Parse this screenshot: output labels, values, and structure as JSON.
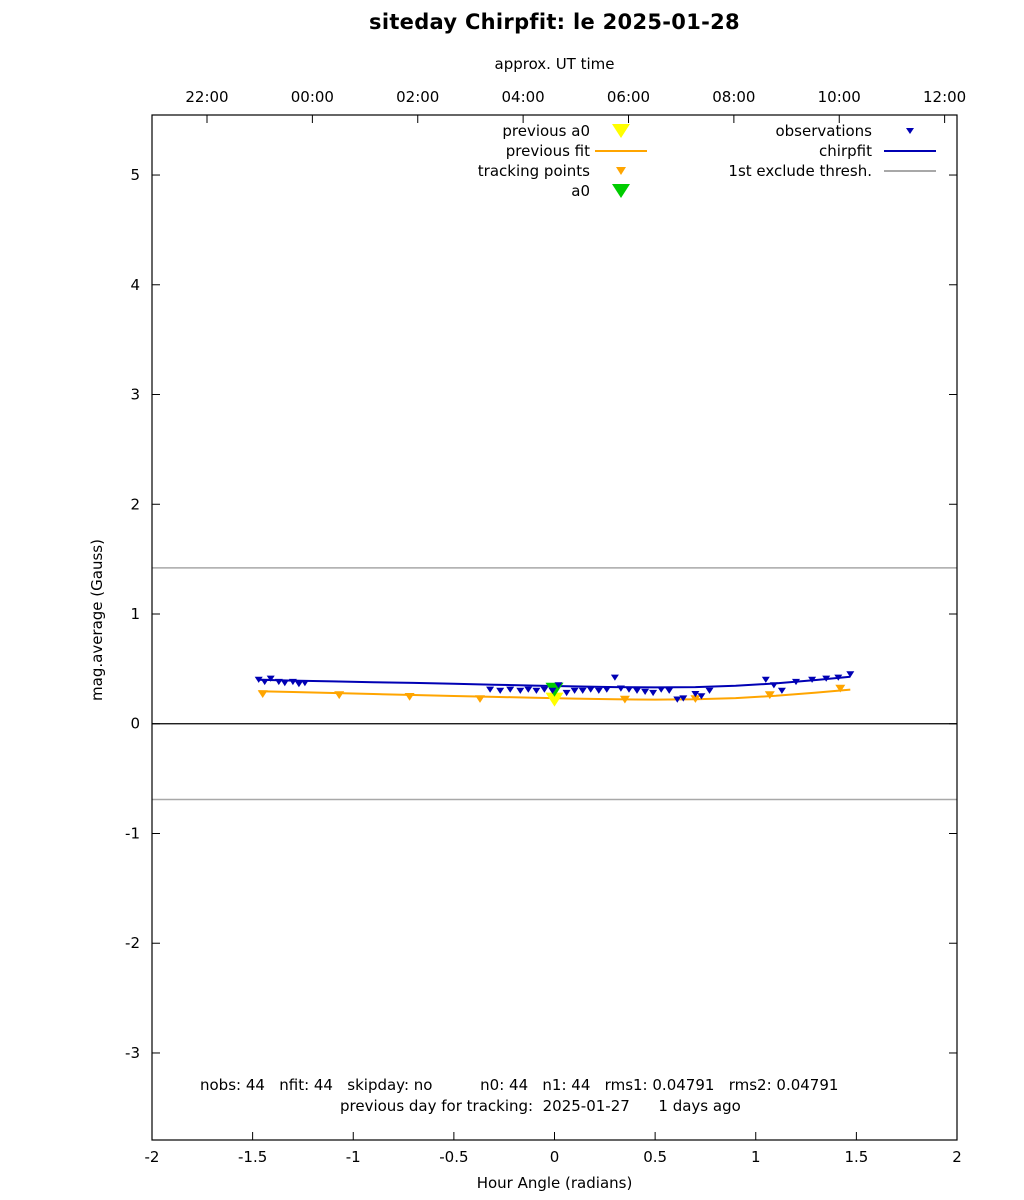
{
  "title": "siteday Chirpfit:  le  2025-01-28",
  "axes": {
    "x2label": "approx. UT time",
    "xlabel": "Hour Angle (radians)",
    "ylabel": "mag.average (Gauss)"
  },
  "legend": {
    "previous_a0": "previous a0",
    "previous_fit": "previous fit",
    "tracking_points": "tracking points",
    "a0": "a0",
    "observations": "observations",
    "chirpfit": "chirpfit",
    "exclude_thresh": "1st exclude thresh."
  },
  "stats": {
    "line1": "nobs: 44   nfit: 44   skipday: no          n0: 44   n1: 44   rms1: 0.04791   rms2: 0.04791",
    "line2": "previous day for tracking:  2025-01-27      1 days ago",
    "nobs": 44,
    "nfit": 44,
    "skipday": "no",
    "n0": 44,
    "n1": 44,
    "rms1": 0.04791,
    "rms2": 0.04791,
    "previous_day": "2025-01-27",
    "days_ago": "1 days ago"
  },
  "chart_data": {
    "type": "scatter",
    "title": "siteday Chirpfit:  le  2025-01-28",
    "xlabel": "Hour Angle (radians)",
    "x2label": "approx. UT time",
    "ylabel": "mag.average (Gauss)",
    "xlim": [
      -2,
      2
    ],
    "ylim": [
      -3.793,
      5.547
    ],
    "grid": false,
    "legend_position": "top-inside",
    "colors": {
      "observations": "#0000b4",
      "chirpfit": "#0000b4",
      "previous_fit": "#ffa500",
      "tracking_points": "#ffa500",
      "a0": "#00cc00",
      "previous_a0": "#ffff00",
      "threshold": "#a8a8a8",
      "axis": "#000000"
    },
    "zero_line": 0,
    "exclude_thresholds": [
      1.42,
      -0.69
    ],
    "x_ticks": [
      {
        "pos": -2,
        "label": "-2"
      },
      {
        "pos": -1.5,
        "label": "-1.5"
      },
      {
        "pos": -1,
        "label": "-1"
      },
      {
        "pos": -0.5,
        "label": "-0.5"
      },
      {
        "pos": 0,
        "label": "0"
      },
      {
        "pos": 0.5,
        "label": "0.5"
      },
      {
        "pos": 1,
        "label": "1"
      },
      {
        "pos": 1.5,
        "label": "1.5"
      },
      {
        "pos": 2,
        "label": "2"
      }
    ],
    "x2_ticks": [
      {
        "pos": -1.7267,
        "label": "22:00"
      },
      {
        "pos": -1.2031,
        "label": "00:00"
      },
      {
        "pos": -0.6795,
        "label": "02:00"
      },
      {
        "pos": -0.1559,
        "label": "04:00"
      },
      {
        "pos": 0.3677,
        "label": "06:00"
      },
      {
        "pos": 0.8913,
        "label": "08:00"
      },
      {
        "pos": 1.4149,
        "label": "10:00"
      },
      {
        "pos": 1.9385,
        "label": "12:00"
      }
    ],
    "y_ticks": [
      {
        "pos": -3,
        "label": "-3"
      },
      {
        "pos": -2,
        "label": "-2"
      },
      {
        "pos": -1,
        "label": "-1"
      },
      {
        "pos": 0,
        "label": "0"
      },
      {
        "pos": 1,
        "label": "1"
      },
      {
        "pos": 2,
        "label": "2"
      },
      {
        "pos": 3,
        "label": "3"
      },
      {
        "pos": 4,
        "label": "4"
      },
      {
        "pos": 5,
        "label": "5"
      }
    ],
    "series": [
      {
        "id": "previous-fit",
        "name": "previous fit",
        "type": "line",
        "color": "#ffa500",
        "width": 2,
        "data": [
          [
            -1.47,
            0.297
          ],
          [
            -1.3,
            0.289
          ],
          [
            -1.1,
            0.28
          ],
          [
            -0.9,
            0.271
          ],
          [
            -0.7,
            0.262
          ],
          [
            -0.5,
            0.253
          ],
          [
            -0.3,
            0.245
          ],
          [
            -0.1,
            0.237
          ],
          [
            0.1,
            0.229
          ],
          [
            0.3,
            0.223
          ],
          [
            0.5,
            0.22
          ],
          [
            0.7,
            0.223
          ],
          [
            0.9,
            0.234
          ],
          [
            1.1,
            0.255
          ],
          [
            1.3,
            0.284
          ],
          [
            1.47,
            0.311
          ]
        ]
      },
      {
        "id": "chirpfit",
        "name": "chirpfit",
        "type": "line",
        "color": "#0000b4",
        "width": 2,
        "data": [
          [
            -1.47,
            0.4
          ],
          [
            -1.3,
            0.393
          ],
          [
            -1.1,
            0.386
          ],
          [
            -0.9,
            0.379
          ],
          [
            -0.7,
            0.372
          ],
          [
            -0.5,
            0.364
          ],
          [
            -0.3,
            0.356
          ],
          [
            -0.1,
            0.348
          ],
          [
            0.1,
            0.34
          ],
          [
            0.3,
            0.334
          ],
          [
            0.5,
            0.331
          ],
          [
            0.7,
            0.334
          ],
          [
            0.9,
            0.346
          ],
          [
            1.1,
            0.368
          ],
          [
            1.3,
            0.399
          ],
          [
            1.47,
            0.428
          ]
        ]
      },
      {
        "id": "tracking-points",
        "name": "tracking points",
        "type": "points",
        "marker": "triangle-down",
        "size": 5,
        "color": "#ffa500",
        "data": [
          [
            -1.45,
            0.27
          ],
          [
            -1.07,
            0.26
          ],
          [
            -0.72,
            0.245
          ],
          [
            -0.37,
            0.225
          ],
          [
            0.0,
            0.21
          ],
          [
            0.35,
            0.22
          ],
          [
            0.7,
            0.225
          ],
          [
            1.07,
            0.26
          ],
          [
            1.42,
            0.32
          ]
        ]
      },
      {
        "id": "previous-a0",
        "name": "previous a0",
        "type": "points",
        "marker": "triangle-down",
        "size": 9,
        "color": "#ffff00",
        "data": [
          [
            0.0,
            0.22
          ]
        ]
      },
      {
        "id": "a0",
        "name": "a0",
        "type": "points",
        "marker": "triangle-down",
        "size": 9,
        "color": "#00cc00",
        "data": [
          [
            0.0,
            0.31
          ]
        ]
      },
      {
        "id": "observations",
        "name": "observations",
        "type": "points",
        "marker": "triangle-down",
        "size": 4,
        "color": "#0000b4",
        "data": [
          [
            -1.47,
            0.4
          ],
          [
            -1.44,
            0.38
          ],
          [
            -1.41,
            0.41
          ],
          [
            -1.37,
            0.38
          ],
          [
            -1.34,
            0.37
          ],
          [
            -1.3,
            0.38
          ],
          [
            -1.27,
            0.36
          ],
          [
            -1.24,
            0.37
          ],
          [
            -0.32,
            0.31
          ],
          [
            -0.27,
            0.3
          ],
          [
            -0.22,
            0.31
          ],
          [
            -0.17,
            0.3
          ],
          [
            -0.13,
            0.31
          ],
          [
            -0.09,
            0.3
          ],
          [
            -0.05,
            0.31
          ],
          [
            -0.01,
            0.3
          ],
          [
            0.02,
            0.35
          ],
          [
            0.06,
            0.28
          ],
          [
            0.1,
            0.3
          ],
          [
            0.14,
            0.3
          ],
          [
            0.18,
            0.31
          ],
          [
            0.22,
            0.3
          ],
          [
            0.26,
            0.31
          ],
          [
            0.3,
            0.42
          ],
          [
            0.33,
            0.32
          ],
          [
            0.37,
            0.31
          ],
          [
            0.41,
            0.3
          ],
          [
            0.45,
            0.29
          ],
          [
            0.49,
            0.28
          ],
          [
            0.53,
            0.31
          ],
          [
            0.57,
            0.3
          ],
          [
            0.61,
            0.22
          ],
          [
            0.64,
            0.23
          ],
          [
            0.7,
            0.27
          ],
          [
            0.73,
            0.25
          ],
          [
            0.77,
            0.3
          ],
          [
            1.05,
            0.4
          ],
          [
            1.09,
            0.35
          ],
          [
            1.13,
            0.3
          ],
          [
            1.2,
            0.38
          ],
          [
            1.28,
            0.4
          ],
          [
            1.35,
            0.41
          ],
          [
            1.41,
            0.42
          ],
          [
            1.47,
            0.45
          ]
        ]
      }
    ]
  }
}
